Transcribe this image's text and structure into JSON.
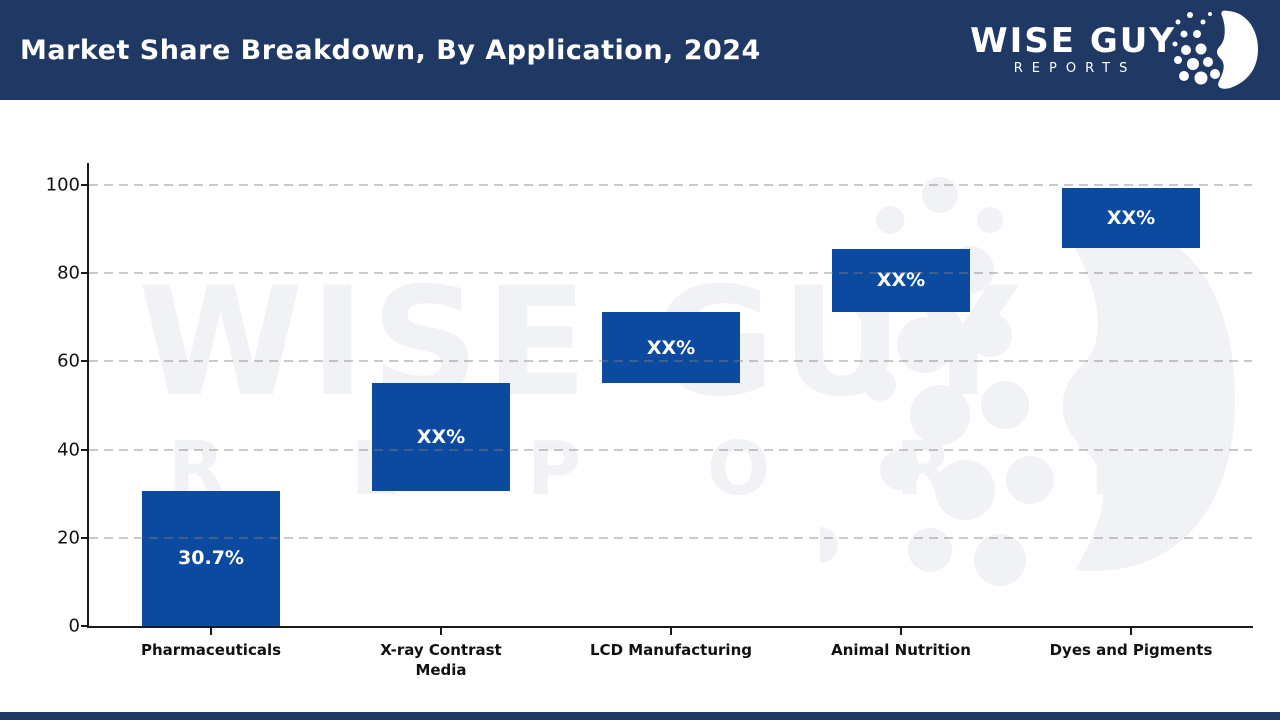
{
  "header": {
    "title": "Market Share Breakdown, By Application, 2024",
    "bg_color": "#203864",
    "logo": {
      "line1": "WISE GUY",
      "line2": "REPORTS"
    }
  },
  "watermark": {
    "line1": "WISE GUY",
    "line2": "REPORTS"
  },
  "footer": {
    "bg_color": "#203864"
  },
  "chart_data": {
    "type": "bar",
    "subtype": "waterfall",
    "title": "Market Share Breakdown, By Application, 2024",
    "categories": [
      "Pharmaceuticals",
      "X-ray Contrast Media",
      "LCD Manufacturing",
      "Animal Nutrition",
      "Dyes and Pigments"
    ],
    "categories_display": [
      "Pharmaceuticals",
      "X-ray Contrast\nMedia",
      "LCD Manufacturing",
      "Animal Nutrition",
      "Dyes and Pigments"
    ],
    "series": [
      {
        "name": "Market share (%)",
        "segments": [
          {
            "category": "Pharmaceuticals",
            "start": 0,
            "end": 30.7,
            "label": "30.7%"
          },
          {
            "category": "X-ray Contrast Media",
            "start": 30.7,
            "end": 55.0,
            "label": "XX%"
          },
          {
            "category": "LCD Manufacturing",
            "start": 55.0,
            "end": 71.2,
            "label": "XX%"
          },
          {
            "category": "Animal Nutrition",
            "start": 71.2,
            "end": 85.6,
            "label": "XX%"
          },
          {
            "category": "Dyes and Pigments",
            "start": 85.6,
            "end": 99.4,
            "label": "XX%"
          }
        ]
      }
    ],
    "yticks": [
      0,
      20,
      40,
      60,
      80,
      100
    ],
    "ylim": [
      0,
      105
    ],
    "xlabel": "",
    "ylabel": "",
    "grid": "horizontal-dashed",
    "legend": "none",
    "bar_color": "#0b4a9e",
    "bar_label_color": "#ffffff",
    "axis_color": "#1a1a1a"
  }
}
